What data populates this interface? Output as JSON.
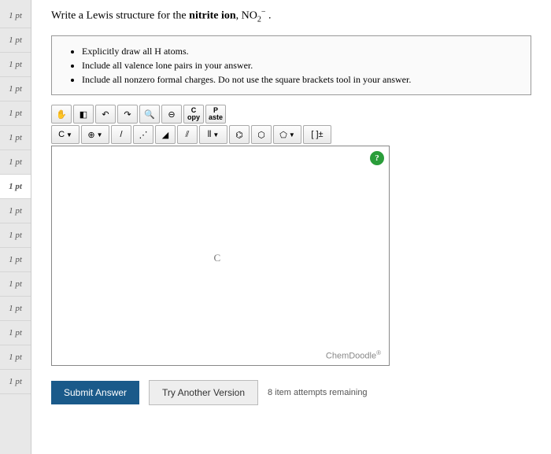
{
  "sidebar": {
    "items": [
      {
        "label": "1 pt"
      },
      {
        "label": "1 pt"
      },
      {
        "label": "1 pt"
      },
      {
        "label": "1 pt"
      },
      {
        "label": "1 pt"
      },
      {
        "label": "1 pt"
      },
      {
        "label": "1 pt"
      },
      {
        "label": "1 pt"
      },
      {
        "label": "1 pt"
      },
      {
        "label": "1 pt"
      },
      {
        "label": "1 pt"
      },
      {
        "label": "1 pt"
      },
      {
        "label": "1 pt"
      },
      {
        "label": "1 pt"
      },
      {
        "label": "1 pt"
      },
      {
        "label": "1 pt"
      }
    ],
    "active_index": 7
  },
  "question": {
    "prefix": "Write a Lewis structure for the ",
    "bold": "nitrite ion",
    "formula_base": ", NO",
    "formula_sub": "2",
    "formula_sup": "−",
    "suffix": " ."
  },
  "instructions": [
    "Explicitly draw all H atoms.",
    "Include all valence lone pairs in your answer.",
    "Include all nonzero formal charges. Do not use the square brackets tool in your answer."
  ],
  "toolbar": {
    "row1": [
      {
        "name": "move-icon",
        "glyph": "✋"
      },
      {
        "name": "erase-icon",
        "glyph": "◧"
      },
      {
        "name": "undo-icon",
        "glyph": "↶"
      },
      {
        "name": "redo-icon",
        "glyph": "↷"
      },
      {
        "name": "zoom-in-icon",
        "glyph": "🔍"
      },
      {
        "name": "zoom-out-icon",
        "glyph": "⊖"
      },
      {
        "name": "copy-icon",
        "glyph": "C",
        "sub": "opy"
      },
      {
        "name": "paste-icon",
        "glyph": "P",
        "sub": "aste"
      }
    ],
    "row2": [
      {
        "name": "element-c",
        "glyph": "C"
      },
      {
        "name": "charge-plus",
        "glyph": "⊕"
      },
      {
        "name": "bond-single",
        "glyph": "/"
      },
      {
        "name": "bond-dash",
        "glyph": "⋰"
      },
      {
        "name": "bond-wedge",
        "glyph": "◢"
      },
      {
        "name": "bond-double",
        "glyph": "⫽"
      },
      {
        "name": "bond-triple",
        "glyph": "⫴"
      },
      {
        "name": "ring-benzene",
        "glyph": "⌬"
      },
      {
        "name": "ring-cyclohex",
        "glyph": "⬡"
      },
      {
        "name": "ring-cyclopent",
        "glyph": "⬠"
      },
      {
        "name": "bracket-icon",
        "glyph": "[ ]±"
      }
    ]
  },
  "canvas": {
    "placeholder_atom": "C",
    "help_glyph": "?",
    "watermark": "ChemDoodle",
    "watermark_reg": "®"
  },
  "actions": {
    "submit": "Submit Answer",
    "try_another": "Try Another Version",
    "attempts": "8 item attempts remaining"
  }
}
